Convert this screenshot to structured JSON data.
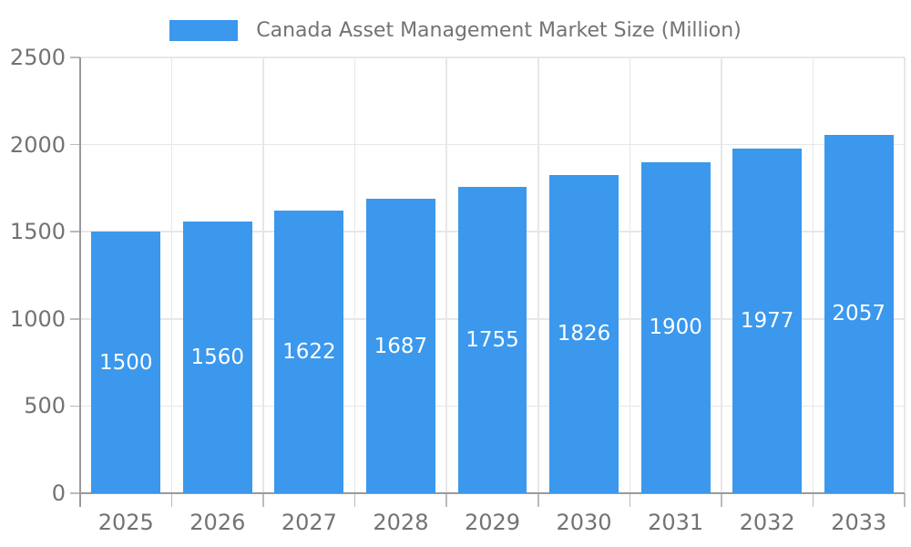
{
  "chart_data": {
    "type": "bar",
    "title": "Canada Asset Management Market Size (Million)",
    "categories": [
      "2025",
      "2026",
      "2027",
      "2028",
      "2029",
      "2030",
      "2031",
      "2032",
      "2033"
    ],
    "values": [
      1500,
      1560,
      1622,
      1687,
      1755,
      1826,
      1900,
      1977,
      2057
    ],
    "xlabel": "",
    "ylabel": "",
    "ylim": [
      0,
      2500
    ],
    "yticks": [
      0,
      500,
      1000,
      1500,
      2000,
      2500
    ],
    "grid": true,
    "legend_position": "top-center",
    "bar_labels_shown": true,
    "bar_label_position": "center"
  },
  "colors": {
    "bar": "#3B98EC",
    "axis": "#9A9A9A",
    "grid": "#E7E7E7",
    "tick": "#BBBBBB",
    "text": "#737373",
    "bar_label": "#FFFFFF",
    "background": "#FFFFFF"
  }
}
